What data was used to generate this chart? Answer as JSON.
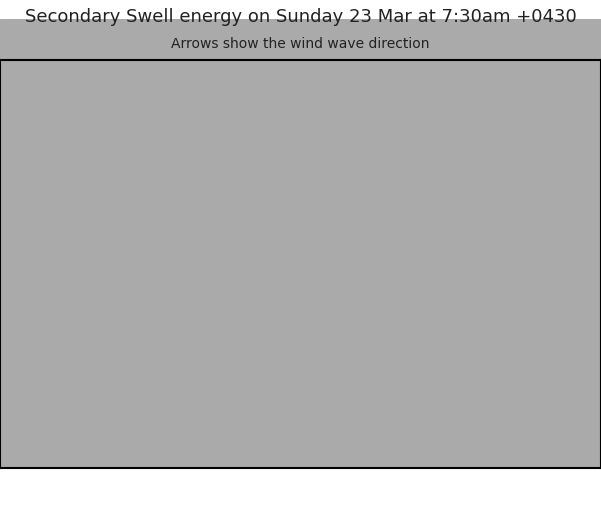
{
  "title": "Secondary Swell energy on Sunday 23 Mar at 7:30am +0430",
  "subtitle": "Arrows show the wind wave direction",
  "title_fontsize": 13,
  "subtitle_fontsize": 10,
  "fig_width": 6.01,
  "fig_height": 5.1,
  "dpi": 100,
  "background_color": "#ffffff",
  "map_extent": [
    44.0,
    80.0,
    23.0,
    44.0
  ],
  "title_color": "#222222",
  "border_color": "#000000",
  "water_color": "#000000",
  "land_color": "#aaaaaa"
}
